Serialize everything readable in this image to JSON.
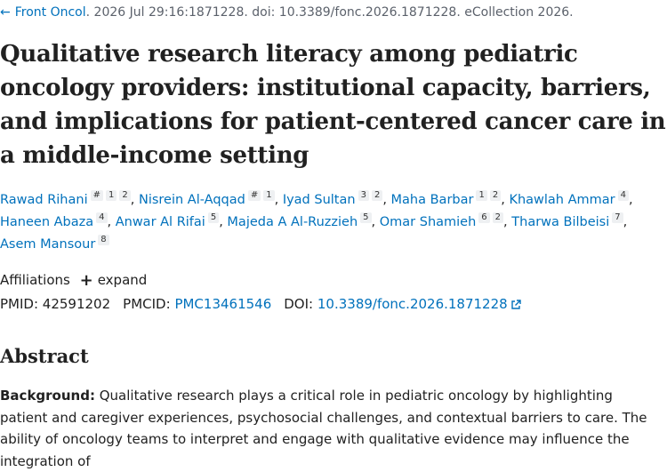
{
  "citation": {
    "journal": "Front Oncol",
    "details": ". 2026 Jul 29:16:1871228. doi: 10.3389/fonc.2026.1871228. eCollection 2026."
  },
  "title": "Qualitative research literacy among pediatric oncology providers: institutional capacity, barriers, and implications for patient-centered cancer care in a middle-income setting",
  "authors": [
    {
      "name": "Rawad Rihani",
      "tags": [
        "#",
        "1",
        "2"
      ],
      "sep": ","
    },
    {
      "name": "Nisrein Al-Aqqad",
      "tags": [
        "#",
        "1"
      ],
      "sep": ","
    },
    {
      "name": "Iyad Sultan",
      "tags": [
        "3",
        "2"
      ],
      "sep": ","
    },
    {
      "name": "Maha Barbar",
      "tags": [
        "1",
        "2"
      ],
      "sep": ","
    },
    {
      "name": "Khawlah Ammar",
      "tags": [
        "4"
      ],
      "sep": ","
    },
    {
      "name": "Haneen Abaza",
      "tags": [
        "4"
      ],
      "sep": ","
    },
    {
      "name": "Anwar Al Rifai",
      "tags": [
        "5"
      ],
      "sep": ","
    },
    {
      "name": "Majeda A Al-Ruzzieh",
      "tags": [
        "5"
      ],
      "sep": ","
    },
    {
      "name": "Omar Shamieh",
      "tags": [
        "6",
        "2"
      ],
      "sep": ","
    },
    {
      "name": "Tharwa Bilbeisi",
      "tags": [
        "7"
      ],
      "sep": ","
    },
    {
      "name": "Asem Mansour",
      "tags": [
        "8"
      ],
      "sep": ""
    }
  ],
  "affiliations": {
    "label": "Affiliations",
    "expand": "expand"
  },
  "ids": {
    "pmid_label": "PMID:",
    "pmid": "42591202",
    "pmcid_label": "PMCID:",
    "pmcid": "PMC13461546",
    "doi_label": "DOI:",
    "doi": "10.3389/fonc.2026.1871228"
  },
  "abstract": {
    "heading": "Abstract",
    "background_label": "Background:",
    "background_text": " Qualitative research plays a critical role in pediatric oncology by highlighting patient and caregiver experiences, psychosocial challenges, and contextual barriers to care. The ability of oncology teams to interpret and engage with qualitative evidence may influence the integration of"
  },
  "colors": {
    "link": "#0071bc",
    "text": "#212121",
    "muted": "#5b616b"
  },
  "icons": {
    "back": "arrow-left-icon",
    "plus": "plus-icon",
    "external": "external-link-icon"
  }
}
